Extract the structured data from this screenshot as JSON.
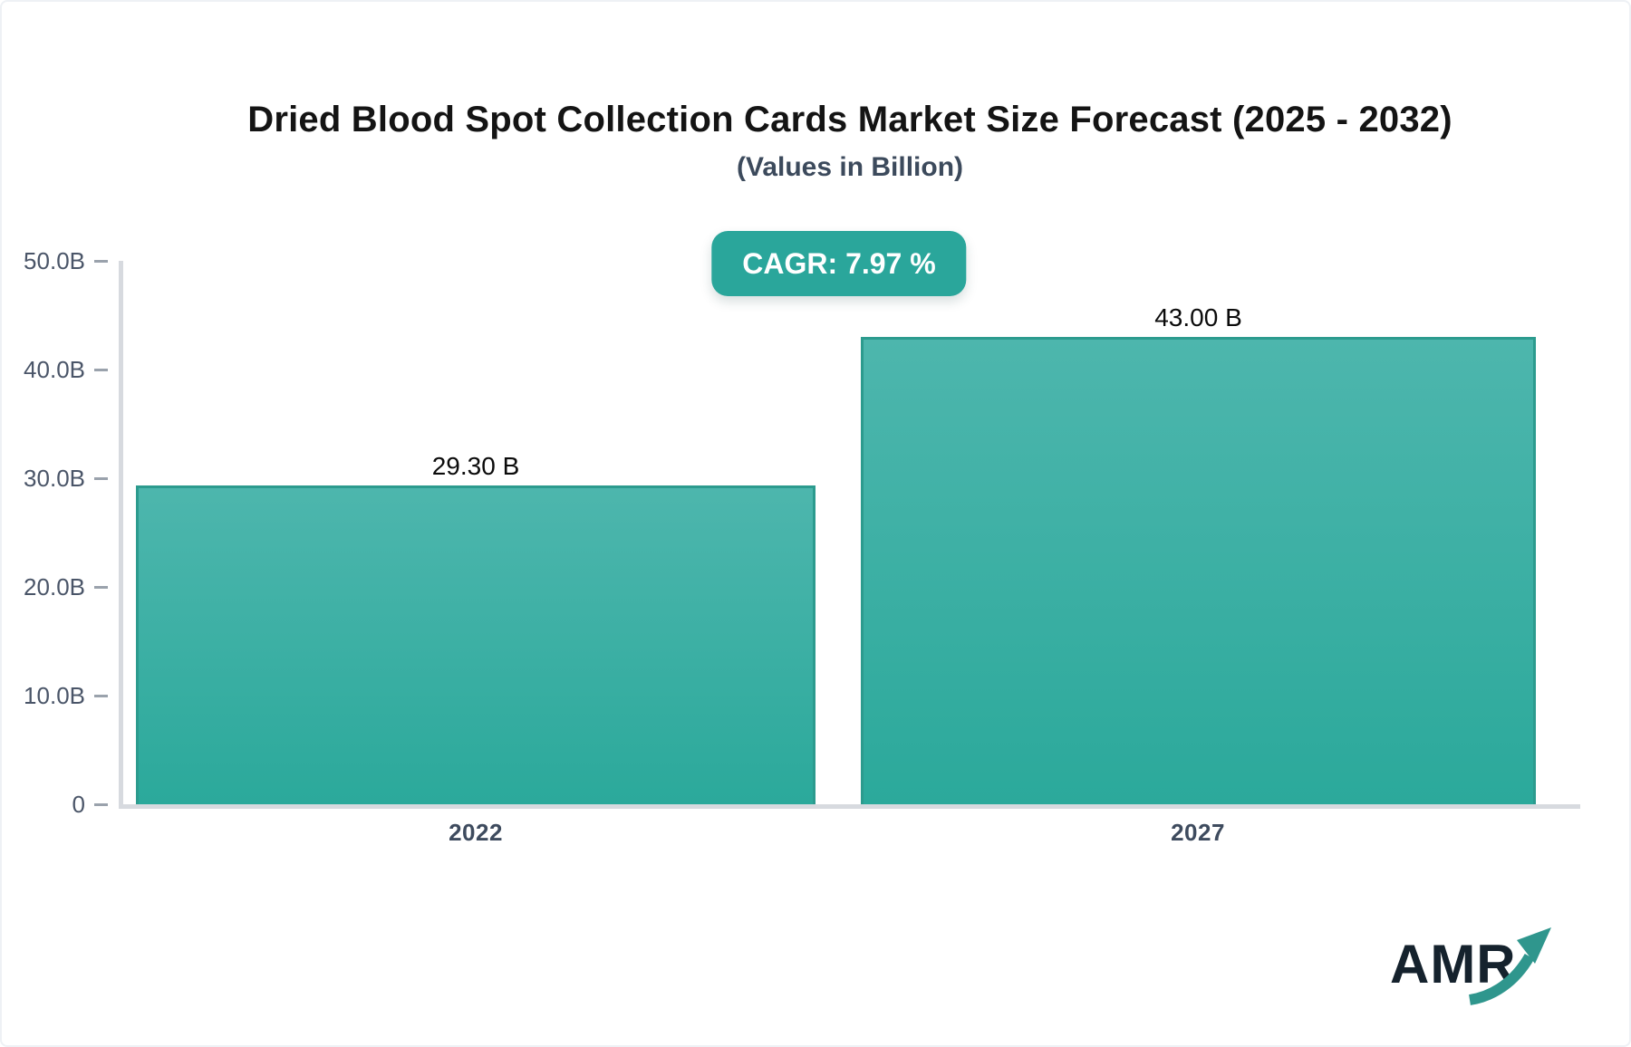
{
  "header": {
    "title": "Dried Blood Spot Collection Cards Market Size Forecast (2025 - 2032)",
    "subtitle": "(Values in Billion)"
  },
  "badge": {
    "label": "CAGR: 7.97 %"
  },
  "chart_data": {
    "type": "bar",
    "categories": [
      "2022",
      "2027"
    ],
    "values": [
      29.3,
      43.0
    ],
    "value_labels": [
      "29.30 B",
      "43.00 B"
    ],
    "title": "Dried Blood Spot Collection Cards Market Size Forecast (2025 - 2032)",
    "subtitle": "(Values in Billion)",
    "xlabel": "",
    "ylabel": "",
    "ylim": [
      0,
      50
    ],
    "ytick_labels": [
      "50.0B",
      "40.0B",
      "30.0B",
      "20.0B",
      "10.0B",
      "0"
    ],
    "grid": false,
    "legend": false,
    "cagr": "7.97 %",
    "colors": {
      "bar_gradient_top": "#4DB6AD",
      "bar_gradient_bottom": "#2BA99B",
      "bar_border": "#2C9B8E",
      "badge_background": "#2AA69B",
      "axis_line": "#D7DADF",
      "tick_label": "#4A5568"
    }
  },
  "logo": {
    "text": "AMR"
  }
}
